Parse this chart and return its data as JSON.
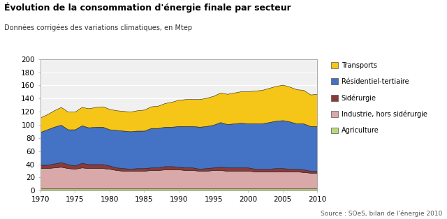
{
  "title": "Évolution de la consommation d'énergie finale par secteur",
  "subtitle": "Données corrigées des variations climatiques, en Mtep",
  "source": "Source : SOeS, bilan de l'énergie 2010",
  "years": [
    1970,
    1971,
    1972,
    1973,
    1974,
    1975,
    1976,
    1977,
    1978,
    1979,
    1980,
    1981,
    1982,
    1983,
    1984,
    1985,
    1986,
    1987,
    1988,
    1989,
    1990,
    1991,
    1992,
    1993,
    1994,
    1995,
    1996,
    1997,
    1998,
    1999,
    2000,
    2001,
    2002,
    2003,
    2004,
    2005,
    2006,
    2007,
    2008,
    2009,
    2010
  ],
  "Agriculture": [
    3,
    3,
    3,
    3,
    3,
    3,
    3,
    3,
    3,
    3,
    3,
    3,
    3,
    3,
    3,
    3,
    3,
    3,
    3,
    3,
    3,
    3,
    3,
    3,
    3,
    3,
    3,
    3,
    3,
    3,
    3,
    3,
    3,
    3,
    3,
    3,
    3,
    3,
    3,
    3,
    3
  ],
  "Industrie_hors_siderurgie": [
    31,
    31,
    32,
    33,
    31,
    30,
    32,
    31,
    31,
    31,
    30,
    28,
    27,
    27,
    27,
    27,
    28,
    28,
    29,
    29,
    29,
    28,
    28,
    27,
    27,
    28,
    28,
    27,
    27,
    27,
    27,
    26,
    26,
    26,
    26,
    26,
    26,
    26,
    25,
    24,
    24
  ],
  "Siderurgie": [
    5,
    5,
    6,
    7,
    6,
    5,
    7,
    6,
    6,
    6,
    5,
    4,
    4,
    3,
    4,
    4,
    4,
    4,
    5,
    5,
    4,
    4,
    4,
    3,
    4,
    4,
    5,
    5,
    5,
    5,
    5,
    4,
    4,
    4,
    5,
    5,
    4,
    4,
    4,
    3,
    3
  ],
  "Residentiel_tertiaire": [
    50,
    54,
    56,
    57,
    53,
    55,
    57,
    56,
    57,
    57,
    55,
    57,
    57,
    57,
    57,
    57,
    60,
    60,
    60,
    60,
    62,
    63,
    63,
    64,
    64,
    65,
    68,
    66,
    67,
    68,
    67,
    69,
    69,
    71,
    72,
    73,
    72,
    69,
    70,
    68,
    68
  ],
  "Transports": [
    22,
    23,
    25,
    27,
    27,
    27,
    28,
    29,
    30,
    31,
    31,
    30,
    30,
    30,
    31,
    32,
    33,
    34,
    36,
    38,
    40,
    41,
    41,
    42,
    43,
    44,
    45,
    46,
    47,
    48,
    49,
    50,
    51,
    52,
    53,
    54,
    53,
    52,
    51,
    48,
    49
  ],
  "colors": {
    "Agriculture": "#b8d87a",
    "Industrie_hors_siderurgie": "#d9a8a8",
    "Siderurgie": "#8b3a3a",
    "Residentiel_tertiaire": "#4472c4",
    "Transports": "#f5c518"
  },
  "bg_color": "#f0f0f0",
  "ylim": [
    0,
    200
  ],
  "yticks": [
    0,
    20,
    40,
    60,
    80,
    100,
    120,
    140,
    160,
    180,
    200
  ],
  "xticks": [
    1970,
    1975,
    1980,
    1985,
    1990,
    1995,
    2000,
    2005,
    2010
  ],
  "xlim": [
    1970,
    2010
  ],
  "legend_labels": [
    "Transports",
    "Résidentiel-tertiaire",
    "Sidérurgie",
    "Industrie, hors sidérurgie",
    "Agriculture"
  ]
}
